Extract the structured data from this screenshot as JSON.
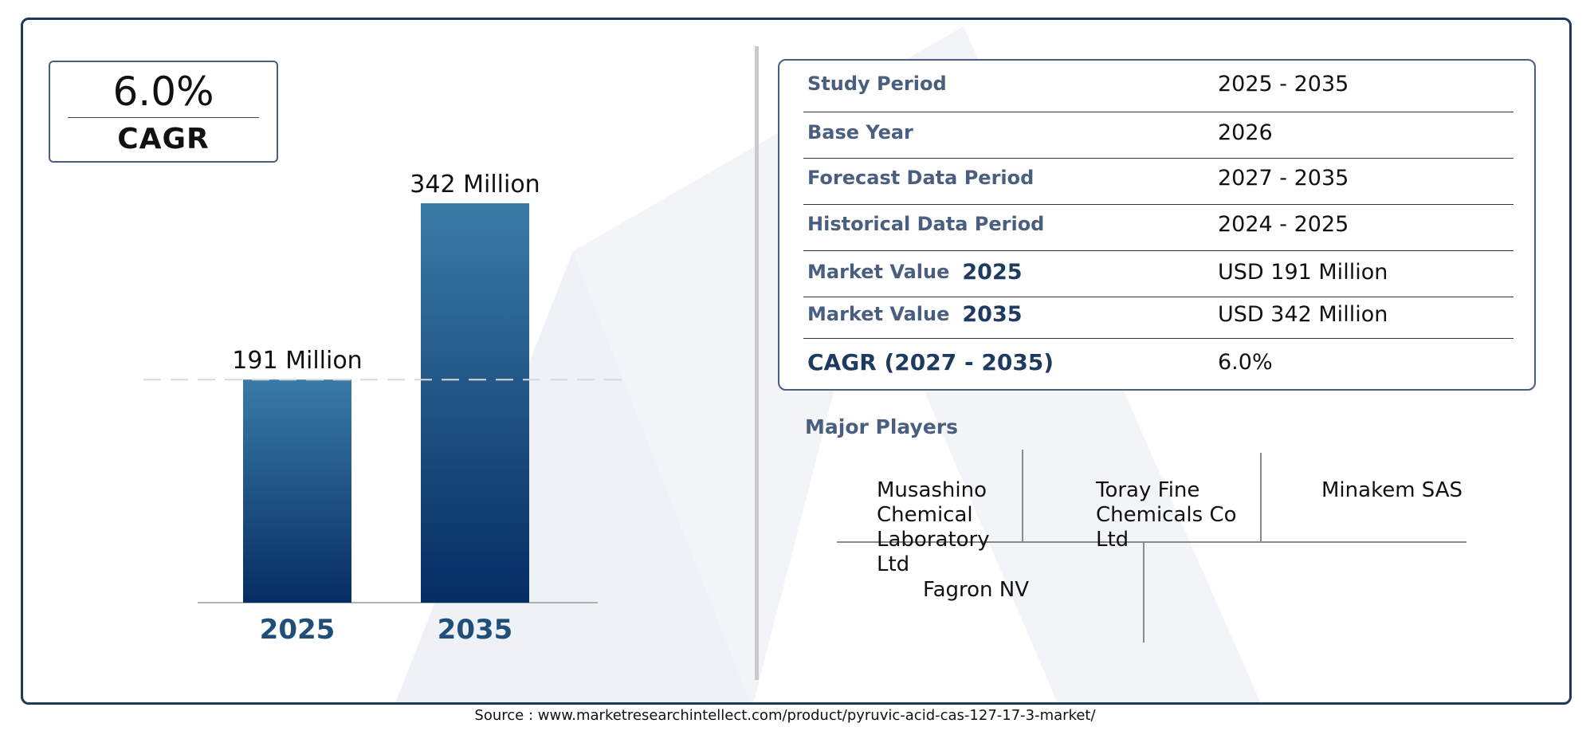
{
  "cagr_box": {
    "value": "6.0%",
    "label": "CAGR"
  },
  "chart_data": {
    "type": "bar",
    "categories": [
      "2025",
      "2035"
    ],
    "values": [
      191,
      342
    ],
    "value_labels": [
      "191 Million",
      "342 Million"
    ],
    "unit": "Million",
    "colors": {
      "bar_top": "#3a7ba6",
      "bar_bottom": "#052d63",
      "tick_label": "#1f4f78"
    }
  },
  "info": {
    "rows": [
      {
        "key": "Study Period",
        "value": "2025 - 2035"
      },
      {
        "key": "Base Year",
        "value": "2026"
      },
      {
        "key": "Forecast Data Period",
        "value": "2027 - 2035"
      },
      {
        "key": "Historical Data Period",
        "value": "2024 - 2025"
      },
      {
        "key": "Market Value",
        "year": "2025",
        "value": "USD 191 Million"
      },
      {
        "key": "Market Value",
        "year": "2035",
        "value": "USD 342 Million"
      },
      {
        "key": "CAGR (2027 - 2035)",
        "value": "6.0%"
      }
    ]
  },
  "players": {
    "title": "Major Players",
    "names": [
      "Musashino Chemical Laboratory Ltd",
      "Toray Fine Chemicals Co Ltd",
      "Minakem SAS",
      "Fagron NV"
    ]
  },
  "source": "Source : www.marketresearchintellect.com/product/pyruvic-acid-cas-127-17-3-market/"
}
